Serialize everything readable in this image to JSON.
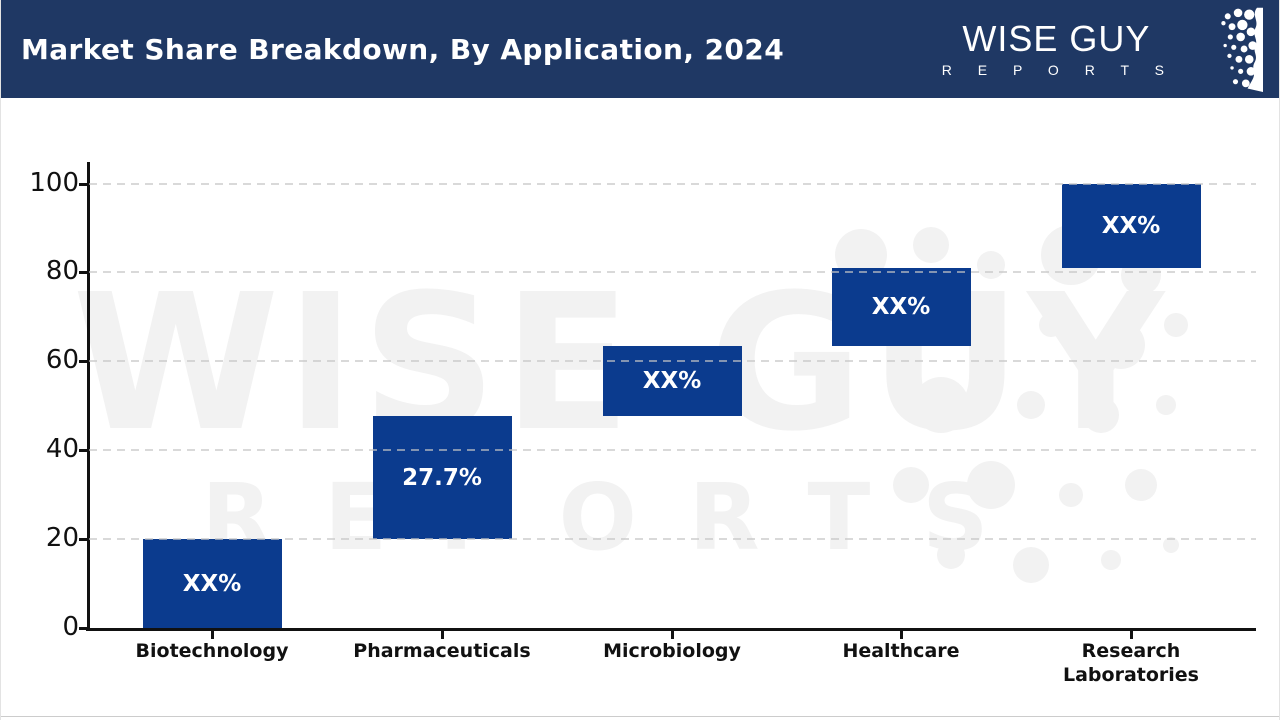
{
  "header": {
    "title": "Market Share Breakdown, By Application, 2024",
    "bg_color": "#1f3864",
    "logo": {
      "line1": "WISE GUY",
      "line2": "R E P O R T S"
    }
  },
  "watermark": {
    "line1": "WISE GUY",
    "line2": "REPORTS"
  },
  "chart_data": {
    "type": "bar",
    "subtype": "waterfall",
    "title": "Market Share Breakdown, By Application, 2024",
    "xlabel": "",
    "ylabel": "",
    "ylim": [
      0,
      105
    ],
    "y_ticks": [
      0,
      20,
      40,
      60,
      80,
      100
    ],
    "grid": "horizontal dashed",
    "legend": "none",
    "bar_color": "#0b3b8e",
    "categories": [
      "Biotechnology",
      "Pharmaceuticals",
      "Microbiology",
      "Healthcare",
      "Research Laboratories"
    ],
    "segments": [
      {
        "category": "Biotechnology",
        "start": 0,
        "end": 20,
        "label": "XX%"
      },
      {
        "category": "Pharmaceuticals",
        "start": 20,
        "end": 47.7,
        "label": "27.7%"
      },
      {
        "category": "Microbiology",
        "start": 47.7,
        "end": 63.5,
        "label": "XX%"
      },
      {
        "category": "Healthcare",
        "start": 63.5,
        "end": 81,
        "label": "XX%"
      },
      {
        "category": "Research Laboratories",
        "start": 81,
        "end": 100,
        "label": "XX%"
      }
    ]
  }
}
